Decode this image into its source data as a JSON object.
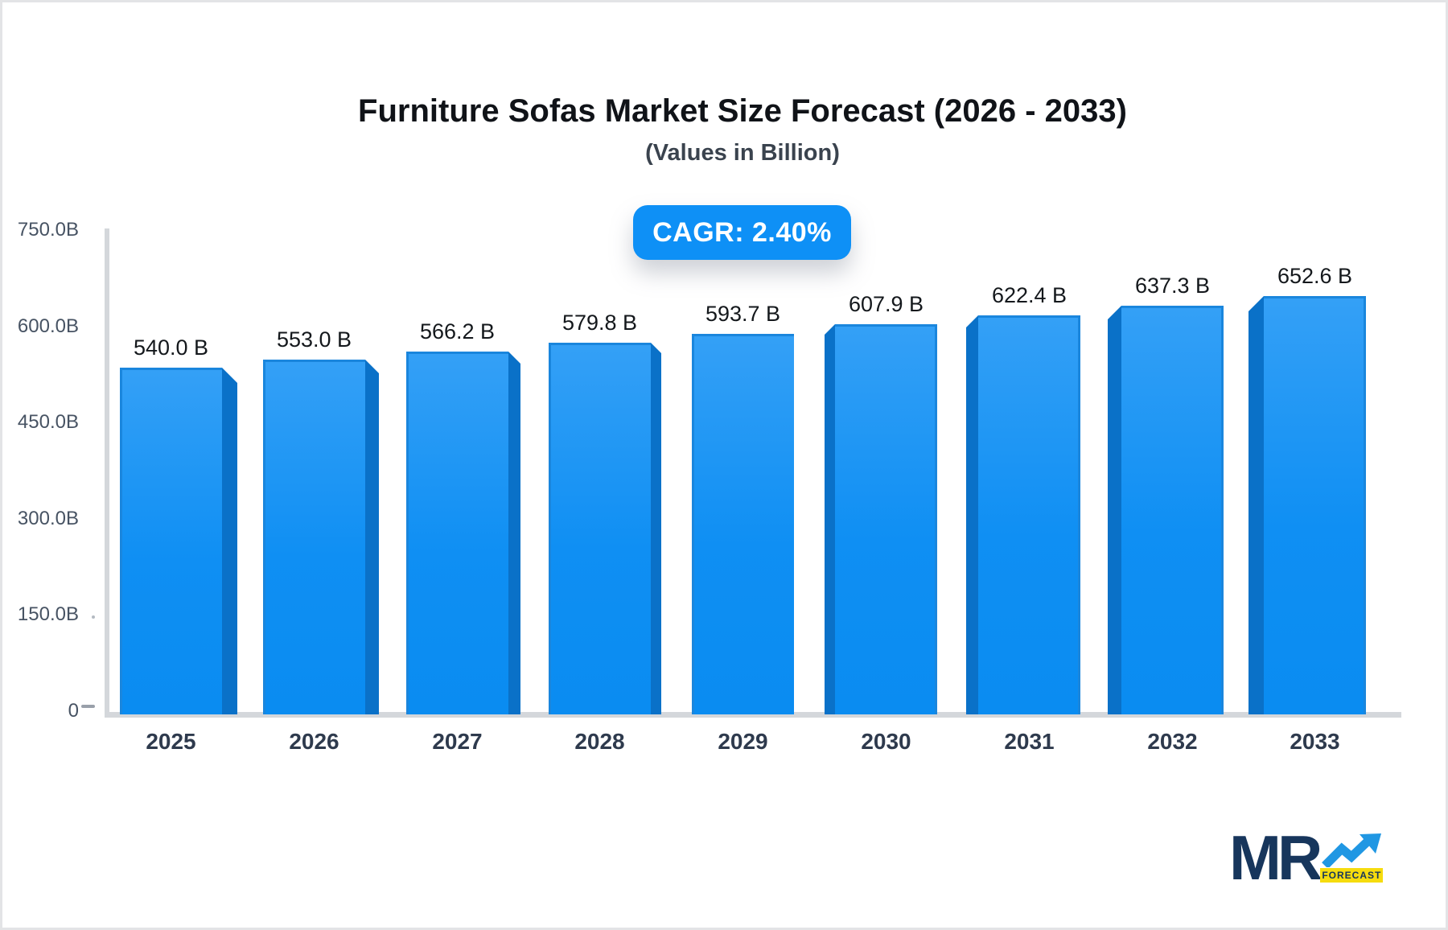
{
  "header": {
    "title": "Furniture Sofas Market Size Forecast (2026 - 2033)",
    "subtitle": "(Values in Billion)"
  },
  "badge": {
    "label": "CAGR: 2.40%"
  },
  "chart_data": {
    "type": "bar",
    "title": "Furniture Sofas Market Size Forecast (2026 - 2033)",
    "subtitle": "(Values in Billion)",
    "unit": "B",
    "categories": [
      "2025",
      "2026",
      "2027",
      "2028",
      "2029",
      "2030",
      "2031",
      "2032",
      "2033"
    ],
    "values": [
      540.0,
      553.0,
      566.2,
      579.8,
      593.7,
      607.9,
      622.4,
      637.3,
      652.6
    ],
    "value_labels": [
      "540.0 B",
      "553.0 B",
      "566.2 B",
      "579.8 B",
      "593.7 B",
      "607.9 B",
      "622.4 B",
      "637.3 B",
      "652.6 B"
    ],
    "ylim": [
      0,
      750
    ],
    "yticks": [
      750,
      600,
      450,
      300,
      150,
      0
    ],
    "ytick_labels": [
      "750.0B",
      "600.0B",
      "450.0B",
      "300.0B",
      "150.0B",
      "0"
    ],
    "grid": false,
    "legend": null,
    "annotation": "CAGR: 2.40%",
    "colors": {
      "bar_top": "#34a0f6",
      "bar_mid": "#0f8ff3",
      "bar_bottom": "#0a8cf1",
      "bar_side": "#0a71c8",
      "bar_edge": "#1a86dd",
      "badge_bg": "#0e90f6",
      "badge_text": "#ffffff",
      "axis_line": "#d4d7db",
      "tick_text": "#475363",
      "year_text": "#2e3a4d",
      "value_text": "#14181c"
    }
  },
  "logo": {
    "text": "MR",
    "tagline": "FORECAST",
    "colors": {
      "navy": "#17365c",
      "blue": "#2097e3",
      "yellow": "#f6dc0e"
    }
  }
}
